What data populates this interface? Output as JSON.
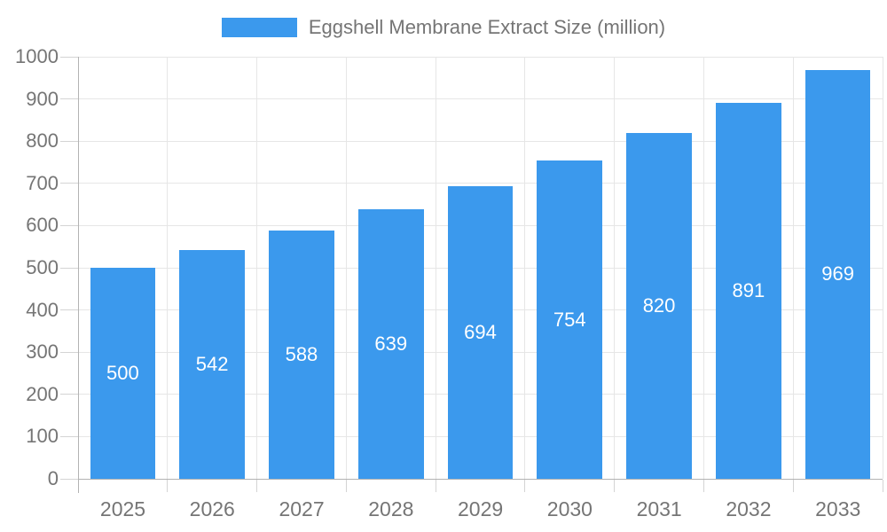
{
  "legend": {
    "label": "Eggshell Membrane Extract Size (million)"
  },
  "chart_data": {
    "type": "bar",
    "categories": [
      "2025",
      "2026",
      "2027",
      "2028",
      "2029",
      "2030",
      "2031",
      "2032",
      "2033"
    ],
    "values": [
      500,
      542,
      588,
      639,
      694,
      754,
      820,
      891,
      969
    ],
    "series_name": "Eggshell Membrane Extract Size (million)",
    "title": "",
    "xlabel": "",
    "ylabel": "",
    "ylim": [
      0,
      1000
    ],
    "ytick_step": 100,
    "ytick_labels": [
      "0",
      "100",
      "200",
      "300",
      "400",
      "500",
      "600",
      "700",
      "800",
      "900",
      "1000"
    ],
    "grid": true,
    "legend_position": "top-center",
    "value_label_position": "inside-center"
  },
  "colors": {
    "bar": "#3b99ed",
    "value_label": "#ffffff",
    "axis_line": "#b3b3b3",
    "gridline": "#e6e6e6",
    "tick": "#d4d4d4",
    "text": "#757575"
  }
}
